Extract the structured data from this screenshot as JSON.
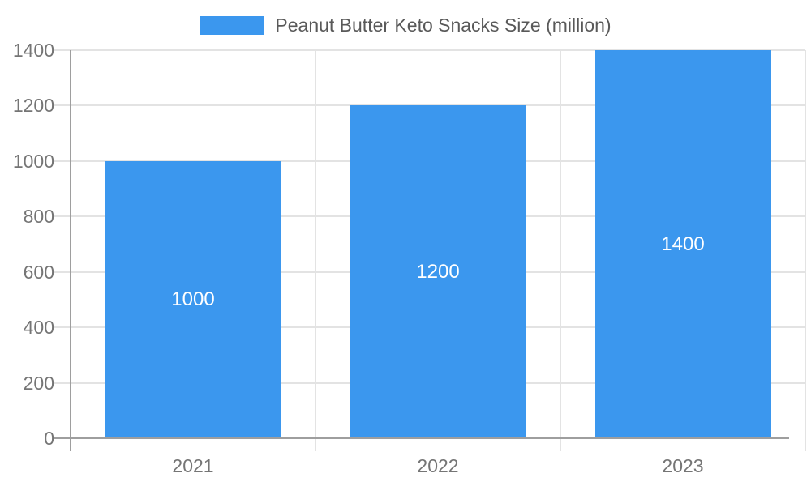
{
  "chart_data": {
    "type": "bar",
    "title": "",
    "legend": {
      "label": "Peanut Butter Keto Snacks Size (million)",
      "position": "top",
      "swatch_icon": "legend-swatch"
    },
    "categories": [
      "2021",
      "2022",
      "2023"
    ],
    "series": [
      {
        "name": "Peanut Butter Keto Snacks Size (million)",
        "values": [
          1000,
          1200,
          1400
        ]
      }
    ],
    "value_labels": [
      "1000",
      "1200",
      "1400"
    ],
    "xlabel": "",
    "ylabel": "",
    "ylim": [
      0,
      1400
    ],
    "yticks": [
      0,
      200,
      400,
      600,
      800,
      1000,
      1200,
      1400
    ],
    "grid": true,
    "colors": {
      "bar": "#3B97EE",
      "grid": "#E3E3E3",
      "axis": "#9E9E9E",
      "tick_label": "#757575",
      "legend_text": "#595959",
      "value_label": "#FFFFFF",
      "background": "#FFFFFF"
    }
  }
}
